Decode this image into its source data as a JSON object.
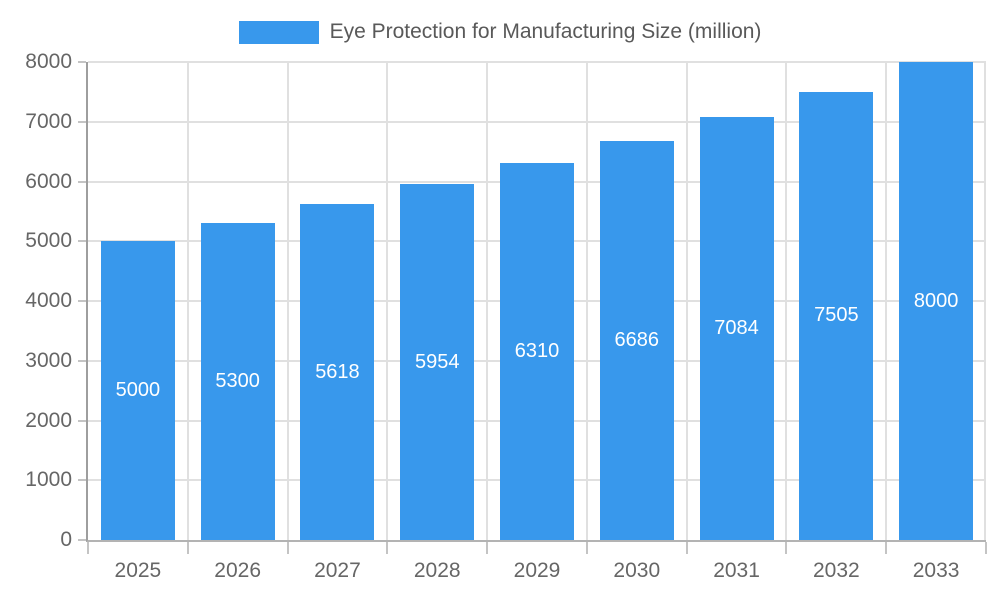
{
  "legend": {
    "label": "Eye Protection for Manufacturing Size (million)"
  },
  "colors": {
    "bar": "#3898EC",
    "grid": "#e0e0e0",
    "axis_line": "#9e9e9e",
    "baseline": "#b3b3b3",
    "tick": "#c4c4c4",
    "axis_text": "#666666",
    "legend_text": "#595959",
    "bar_label_text": "#ffffff"
  },
  "chart_data": {
    "type": "bar",
    "title": "Eye Protection for Manufacturing Size (million)",
    "series_name": "Eye Protection for Manufacturing Size (million)",
    "categories": [
      "2025",
      "2026",
      "2027",
      "2028",
      "2029",
      "2030",
      "2031",
      "2032",
      "2033"
    ],
    "values": [
      5000,
      5300,
      5618,
      5954,
      6310,
      6686,
      7084,
      7505,
      8000
    ],
    "xlabel": "",
    "ylabel": "",
    "ylim": [
      0,
      8000
    ],
    "yticks": [
      0,
      1000,
      2000,
      3000,
      4000,
      5000,
      6000,
      7000,
      8000
    ],
    "grid": true,
    "legend_position": "top",
    "bar_labels_visible": true,
    "bar_label_position": "center"
  }
}
